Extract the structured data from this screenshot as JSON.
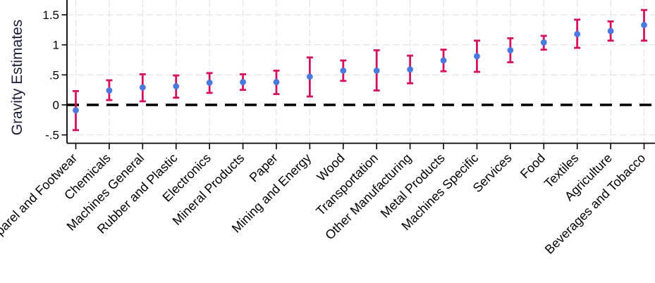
{
  "chart_data": {
    "type": "scatter",
    "subtype": "point-estimates-with-confidence-intervals",
    "title": "",
    "xlabel": "",
    "ylabel": "Gravity Estimates",
    "ylim": [
      -0.64,
      1.75
    ],
    "grid": true,
    "legend": "none",
    "zero_reference_line": 0,
    "yticks": [
      {
        "value": -0.5,
        "label": "-.5"
      },
      {
        "value": 0,
        "label": "0"
      },
      {
        "value": 0.5,
        "label": ".5"
      },
      {
        "value": 1,
        "label": "1"
      },
      {
        "value": 1.5,
        "label": "1.5"
      }
    ],
    "categories": [
      "Apparel and Footwear",
      "Chemicals",
      "Machines General",
      "Rubber and Plastic",
      "Electronics",
      "Mineral Products",
      "Paper",
      "Mining and Energy",
      "Wood",
      "Transportation",
      "Other Manufacturing",
      "Metal Products",
      "Machines Specific",
      "Services",
      "Food",
      "Textiles",
      "Agriculture",
      "Beverages and Tobacco"
    ],
    "series": [
      {
        "name": "estimate",
        "values": [
          -0.09,
          0.24,
          0.29,
          0.31,
          0.37,
          0.38,
          0.38,
          0.47,
          0.57,
          0.57,
          0.59,
          0.74,
          0.81,
          0.91,
          1.04,
          1.18,
          1.23,
          1.33
        ]
      },
      {
        "name": "ci_low",
        "values": [
          -0.42,
          0.08,
          0.06,
          0.12,
          0.2,
          0.25,
          0.18,
          0.14,
          0.4,
          0.24,
          0.36,
          0.56,
          0.55,
          0.71,
          0.92,
          0.95,
          1.07,
          1.07
        ]
      },
      {
        "name": "ci_high",
        "values": [
          0.23,
          0.41,
          0.51,
          0.49,
          0.53,
          0.51,
          0.57,
          0.79,
          0.74,
          0.91,
          0.82,
          0.92,
          1.07,
          1.11,
          1.15,
          1.42,
          1.39,
          1.58
        ]
      }
    ],
    "colors": {
      "marker": "#4a7ae0",
      "error_bar": "#d4115f",
      "zero_line": "#000000",
      "axis": "#000000",
      "grid": "#e6e6e6",
      "tick_label": "#000000",
      "axis_title": "#1c1c38",
      "background": "#ffffff"
    }
  }
}
